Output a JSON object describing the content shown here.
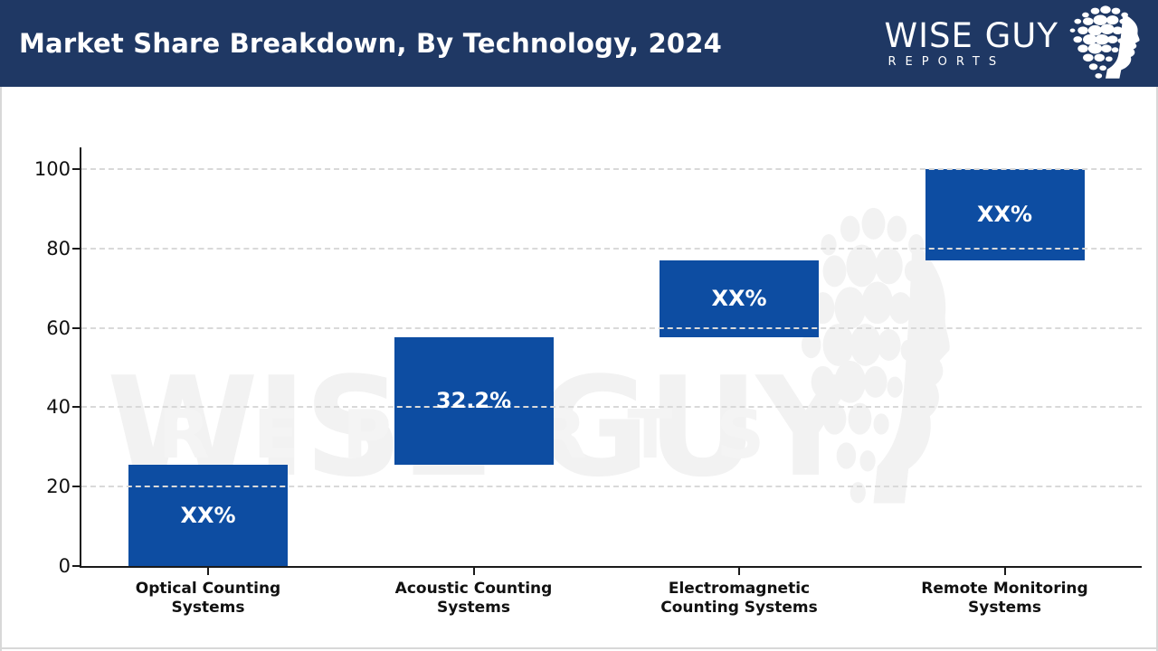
{
  "header": {
    "title": "Market Share Breakdown, By Technology, 2024",
    "bg_color": "#1f3864",
    "logo": {
      "line1": "WISE GUY",
      "line2": "REPORTS"
    }
  },
  "watermark": {
    "line1": "WISE GUY",
    "line2": "REPORTS"
  },
  "chart_data": {
    "type": "bar",
    "subtype": "waterfall-floating-bars",
    "title": "Market Share Breakdown, By Technology, 2024",
    "categories": [
      "Optical Counting\nSystems",
      "Acoustic Counting\nSystems",
      "Electromagnetic\nCounting Systems",
      "Remote Monitoring\nSystems"
    ],
    "bars": [
      {
        "label": "XX%",
        "start": 0,
        "end": 25.5
      },
      {
        "label": "32.2%",
        "start": 25.5,
        "end": 57.7
      },
      {
        "label": "XX%",
        "start": 57.7,
        "end": 77.0
      },
      {
        "label": "XX%",
        "start": 77.0,
        "end": 100.0
      }
    ],
    "values": [
      25.5,
      32.2,
      19.3,
      23.0
    ],
    "xlabel": "",
    "ylabel": "",
    "ylim": [
      0,
      100
    ],
    "yticks": [
      0,
      20,
      40,
      60,
      80,
      100
    ],
    "grid": "horizontal-dashed-over-bars",
    "legend": "none",
    "bar_color": "#0d4da2",
    "bar_label_color": "#ffffff",
    "axis_color": "#1a1a1a",
    "gridline_color": "#d9d9d9"
  }
}
